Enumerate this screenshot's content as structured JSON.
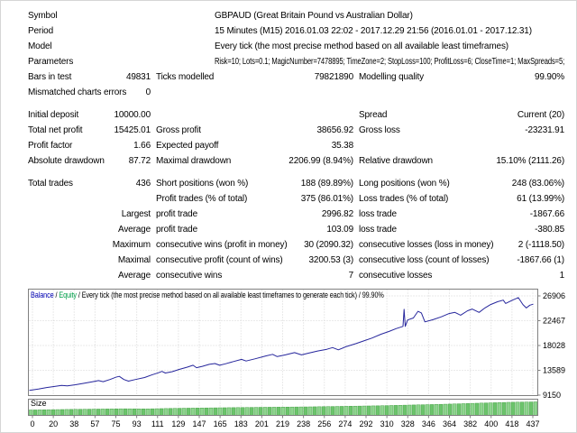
{
  "report": {
    "sections": [
      {
        "rows": [
          {
            "label": "Symbol",
            "value": "GBPAUD (Great Britain Pound vs Australian Dollar)"
          },
          {
            "label": "Period",
            "value": "15 Minutes (M15) 2016.01.03 22:02 - 2017.12.29 21:56 (2016.01.01 - 2017.12.31)"
          },
          {
            "label": "Model",
            "value": "Every tick (the most precise method based on all available least timeframes)"
          },
          {
            "label": "Parameters",
            "value": "Risk=10; Lots=0.1; MagicNumber=7478895; TimeZone=2; StopLoss=100; ProfitLoss=6; CloseTime=1; MaxSpreads=5;"
          }
        ]
      },
      {
        "nogap": true,
        "rows": [
          {
            "c1": "Bars in test",
            "c2": "49831",
            "c3": "Ticks modelled",
            "c4": "79821890",
            "c5": "Modelling quality",
            "c6": "99.90%"
          },
          {
            "c1": "Mismatched charts errors",
            "c2": "0",
            "c3": "",
            "c4": "",
            "c5": "",
            "c6": ""
          }
        ]
      },
      {
        "rows": [
          {
            "c1": "Initial deposit",
            "c2": "10000.00",
            "c3": "",
            "c4": "",
            "c5": "Spread",
            "c6": "Current (20)"
          },
          {
            "c1": "Total net profit",
            "c2": "15425.01",
            "c3": "Gross profit",
            "c4": "38656.92",
            "c5": "Gross loss",
            "c6": "-23231.91"
          },
          {
            "c1": "Profit factor",
            "c2": "1.66",
            "c3": "Expected payoff",
            "c4": "35.38",
            "c5": "",
            "c6": ""
          },
          {
            "c1": "Absolute drawdown",
            "c2": "87.72",
            "c3": "Maximal drawdown",
            "c4": "2206.99 (8.94%)",
            "c5": "Relative drawdown",
            "c6": "15.10% (2111.26)"
          }
        ]
      },
      {
        "rows": [
          {
            "c1": "Total trades",
            "c2": "436",
            "c3": "Short positions (won %)",
            "c4": "188 (89.89%)",
            "c5": "Long positions (won %)",
            "c6": "248 (83.06%)"
          },
          {
            "c1": "",
            "c2": "",
            "c3": "Profit trades (% of total)",
            "c4": "375 (86.01%)",
            "c5": "Loss trades (% of total)",
            "c6": "61 (13.99%)"
          },
          {
            "c1": "",
            "c2": "Largest",
            "c3": "profit trade",
            "c4": "2996.82",
            "c5": "loss trade",
            "c6": "-1867.66"
          },
          {
            "c1": "",
            "c2": "Average",
            "c3": "profit trade",
            "c4": "103.09",
            "c5": "loss trade",
            "c6": "-380.85"
          },
          {
            "c1": "",
            "c2": "Maximum",
            "c3": "consecutive wins (profit in money)",
            "c4": "30 (2090.32)",
            "c5": "consecutive losses (loss in money)",
            "c6": "2 (-1118.50)"
          },
          {
            "c1": "",
            "c2": "Maximal",
            "c3": "consecutive profit (count of wins)",
            "c4": "3200.53 (3)",
            "c5": "consecutive loss (count of losses)",
            "c6": "-1867.66 (1)"
          },
          {
            "c1": "",
            "c2": "Average",
            "c3": "consecutive wins",
            "c4": "7",
            "c5": "consecutive losses",
            "c6": "1"
          }
        ]
      }
    ]
  },
  "chart_data": {
    "type": "line",
    "legend": {
      "balance": "Balance",
      "equity": "Equity",
      "model": "Every tick (the most precise method based on all available least timeframes to generate each tick)",
      "quality": "99.90%"
    },
    "y_ticks": [
      26906,
      22467,
      18028,
      13589,
      9150
    ],
    "x_tick_labels": [
      "0",
      "20",
      "38",
      "57",
      "75",
      "93",
      "111",
      "129",
      "147",
      "165",
      "183",
      "201",
      "219",
      "238",
      "256",
      "274",
      "292",
      "310",
      "328",
      "346",
      "364",
      "382",
      "400",
      "418",
      "437"
    ],
    "ylim": [
      9150,
      26906
    ],
    "xlim": [
      0,
      437
    ],
    "balance_series": [
      [
        0,
        10000
      ],
      [
        8,
        10250
      ],
      [
        15,
        10500
      ],
      [
        22,
        10700
      ],
      [
        28,
        10900
      ],
      [
        33,
        10800
      ],
      [
        40,
        11000
      ],
      [
        48,
        11300
      ],
      [
        55,
        11550
      ],
      [
        60,
        11750
      ],
      [
        64,
        11550
      ],
      [
        70,
        11950
      ],
      [
        75,
        12350
      ],
      [
        78,
        12500
      ],
      [
        82,
        11950
      ],
      [
        86,
        11650
      ],
      [
        92,
        11950
      ],
      [
        100,
        12300
      ],
      [
        106,
        12750
      ],
      [
        112,
        13150
      ],
      [
        115,
        13400
      ],
      [
        118,
        13100
      ],
      [
        124,
        13350
      ],
      [
        130,
        13750
      ],
      [
        137,
        14150
      ],
      [
        142,
        14500
      ],
      [
        145,
        14050
      ],
      [
        150,
        14300
      ],
      [
        156,
        14650
      ],
      [
        161,
        14800
      ],
      [
        165,
        14500
      ],
      [
        170,
        14750
      ],
      [
        177,
        15150
      ],
      [
        184,
        15550
      ],
      [
        188,
        15250
      ],
      [
        196,
        15650
      ],
      [
        205,
        16150
      ],
      [
        211,
        16450
      ],
      [
        215,
        16050
      ],
      [
        222,
        16350
      ],
      [
        230,
        16750
      ],
      [
        236,
        16350
      ],
      [
        242,
        16650
      ],
      [
        250,
        17050
      ],
      [
        258,
        17350
      ],
      [
        263,
        17650
      ],
      [
        268,
        17250
      ],
      [
        275,
        17850
      ],
      [
        283,
        18350
      ],
      [
        290,
        18850
      ],
      [
        297,
        19350
      ],
      [
        305,
        20050
      ],
      [
        312,
        20550
      ],
      [
        318,
        21050
      ],
      [
        324,
        21450
      ],
      [
        325,
        24500
      ],
      [
        326,
        21450
      ],
      [
        328,
        22600
      ],
      [
        333,
        22950
      ],
      [
        337,
        24150
      ],
      [
        340,
        23850
      ],
      [
        343,
        22250
      ],
      [
        350,
        22650
      ],
      [
        357,
        23150
      ],
      [
        364,
        23750
      ],
      [
        369,
        23950
      ],
      [
        374,
        23450
      ],
      [
        380,
        24250
      ],
      [
        384,
        24550
      ],
      [
        390,
        23950
      ],
      [
        395,
        24750
      ],
      [
        400,
        25350
      ],
      [
        406,
        25850
      ],
      [
        411,
        26150
      ],
      [
        413,
        25550
      ],
      [
        419,
        26150
      ],
      [
        424,
        26600
      ],
      [
        428,
        25350
      ],
      [
        431,
        24750
      ],
      [
        434,
        25250
      ],
      [
        437,
        25425
      ]
    ],
    "size_panel": {
      "label": "Size",
      "profile": [
        [
          0,
          0.4
        ],
        [
          40,
          0.45
        ],
        [
          80,
          0.49
        ],
        [
          100,
          0.48
        ],
        [
          130,
          0.53
        ],
        [
          160,
          0.56
        ],
        [
          200,
          0.6
        ],
        [
          240,
          0.63
        ],
        [
          270,
          0.67
        ],
        [
          300,
          0.71
        ],
        [
          330,
          0.77
        ],
        [
          360,
          0.83
        ],
        [
          390,
          0.91
        ],
        [
          415,
          0.97
        ],
        [
          437,
          1.0
        ]
      ]
    },
    "colors": {
      "balance_line": "#26269c",
      "balance_label": "#0000b4",
      "equity_label": "#00a04a",
      "grid": "#d4d4d4",
      "frame": "#808080",
      "bar_fill_light": "#8fd48f",
      "bar_fill_dark": "#6cc46c",
      "bar_stroke": "#49a449"
    }
  }
}
